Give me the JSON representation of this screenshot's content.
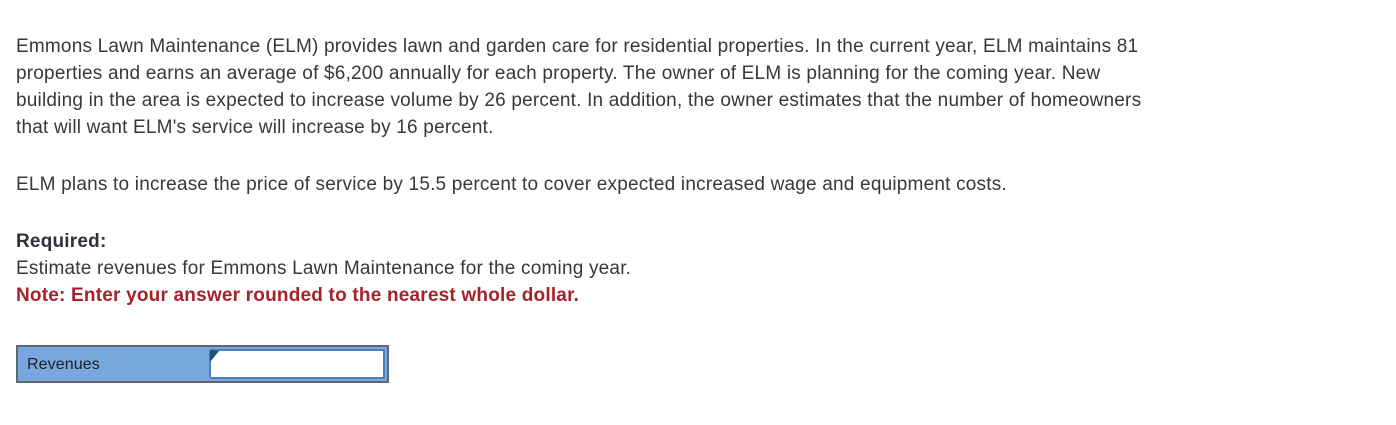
{
  "intro": {
    "lines": [
      "Emmons Lawn Maintenance (ELM) provides lawn and garden care for residential properties. In the current year, ELM maintains 81",
      "properties and earns an average of $6,200 annually for each property. The owner of ELM is planning for the coming year. New",
      "building in the area is expected to increase volume by 26 percent. In addition, the owner estimates that the number of homeowners",
      "that will want ELM's service will increase by 16 percent."
    ]
  },
  "pricing_paragraph": "ELM plans to increase the price of service by 15.5 percent to cover expected increased wage and equipment costs.",
  "required": {
    "heading": "Required:",
    "task": "Estimate revenues for Emmons Lawn Maintenance for the coming year.",
    "note": "Note: Enter your answer rounded to the nearest whole dollar."
  },
  "answer_table": {
    "row_label": "Revenues",
    "input_value": ""
  },
  "colors": {
    "body_text": "#36383d",
    "note_red": "#a6222a",
    "label_cell_blue": "#77a7dc",
    "table_border_gray": "#5d6873",
    "input_border_blue": "#4d7fbf",
    "marker_triangle_blue": "#1f4e79"
  }
}
